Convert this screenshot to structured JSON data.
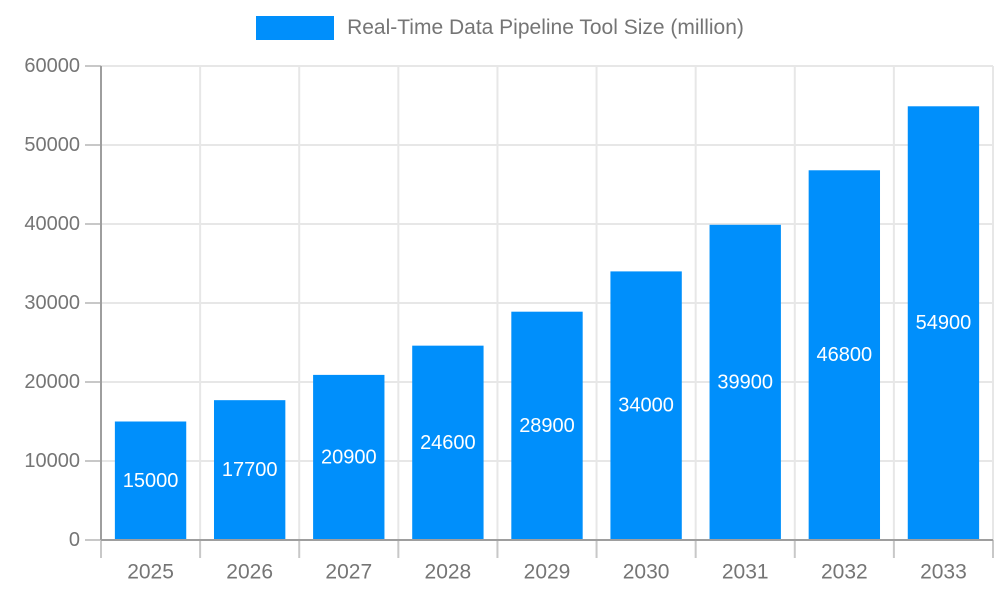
{
  "legend": {
    "label": "Real-Time Data Pipeline Tool Size (million)"
  },
  "chart_data": {
    "type": "bar",
    "title": "Real-Time Data Pipeline Tool Size (million)",
    "categories": [
      "2025",
      "2026",
      "2027",
      "2028",
      "2029",
      "2030",
      "2031",
      "2032",
      "2033"
    ],
    "values": [
      15000,
      17700,
      20900,
      24600,
      28900,
      34000,
      39900,
      46800,
      54900
    ],
    "yticks": [
      0,
      10000,
      20000,
      30000,
      40000,
      50000,
      60000
    ],
    "ylim": [
      0,
      60000
    ],
    "xlabel": "",
    "ylabel": "",
    "legend_position": "top",
    "grid": true,
    "value_label_position": "inside-center",
    "colors": {
      "bar": "#008FFB",
      "axis_text": "#757575",
      "grid_line": "#e7e7e7",
      "tick_line": "#c8c8c8",
      "axis_line": "#9e9e9e",
      "value_label": "#ffffff",
      "background": "#ffffff"
    }
  }
}
